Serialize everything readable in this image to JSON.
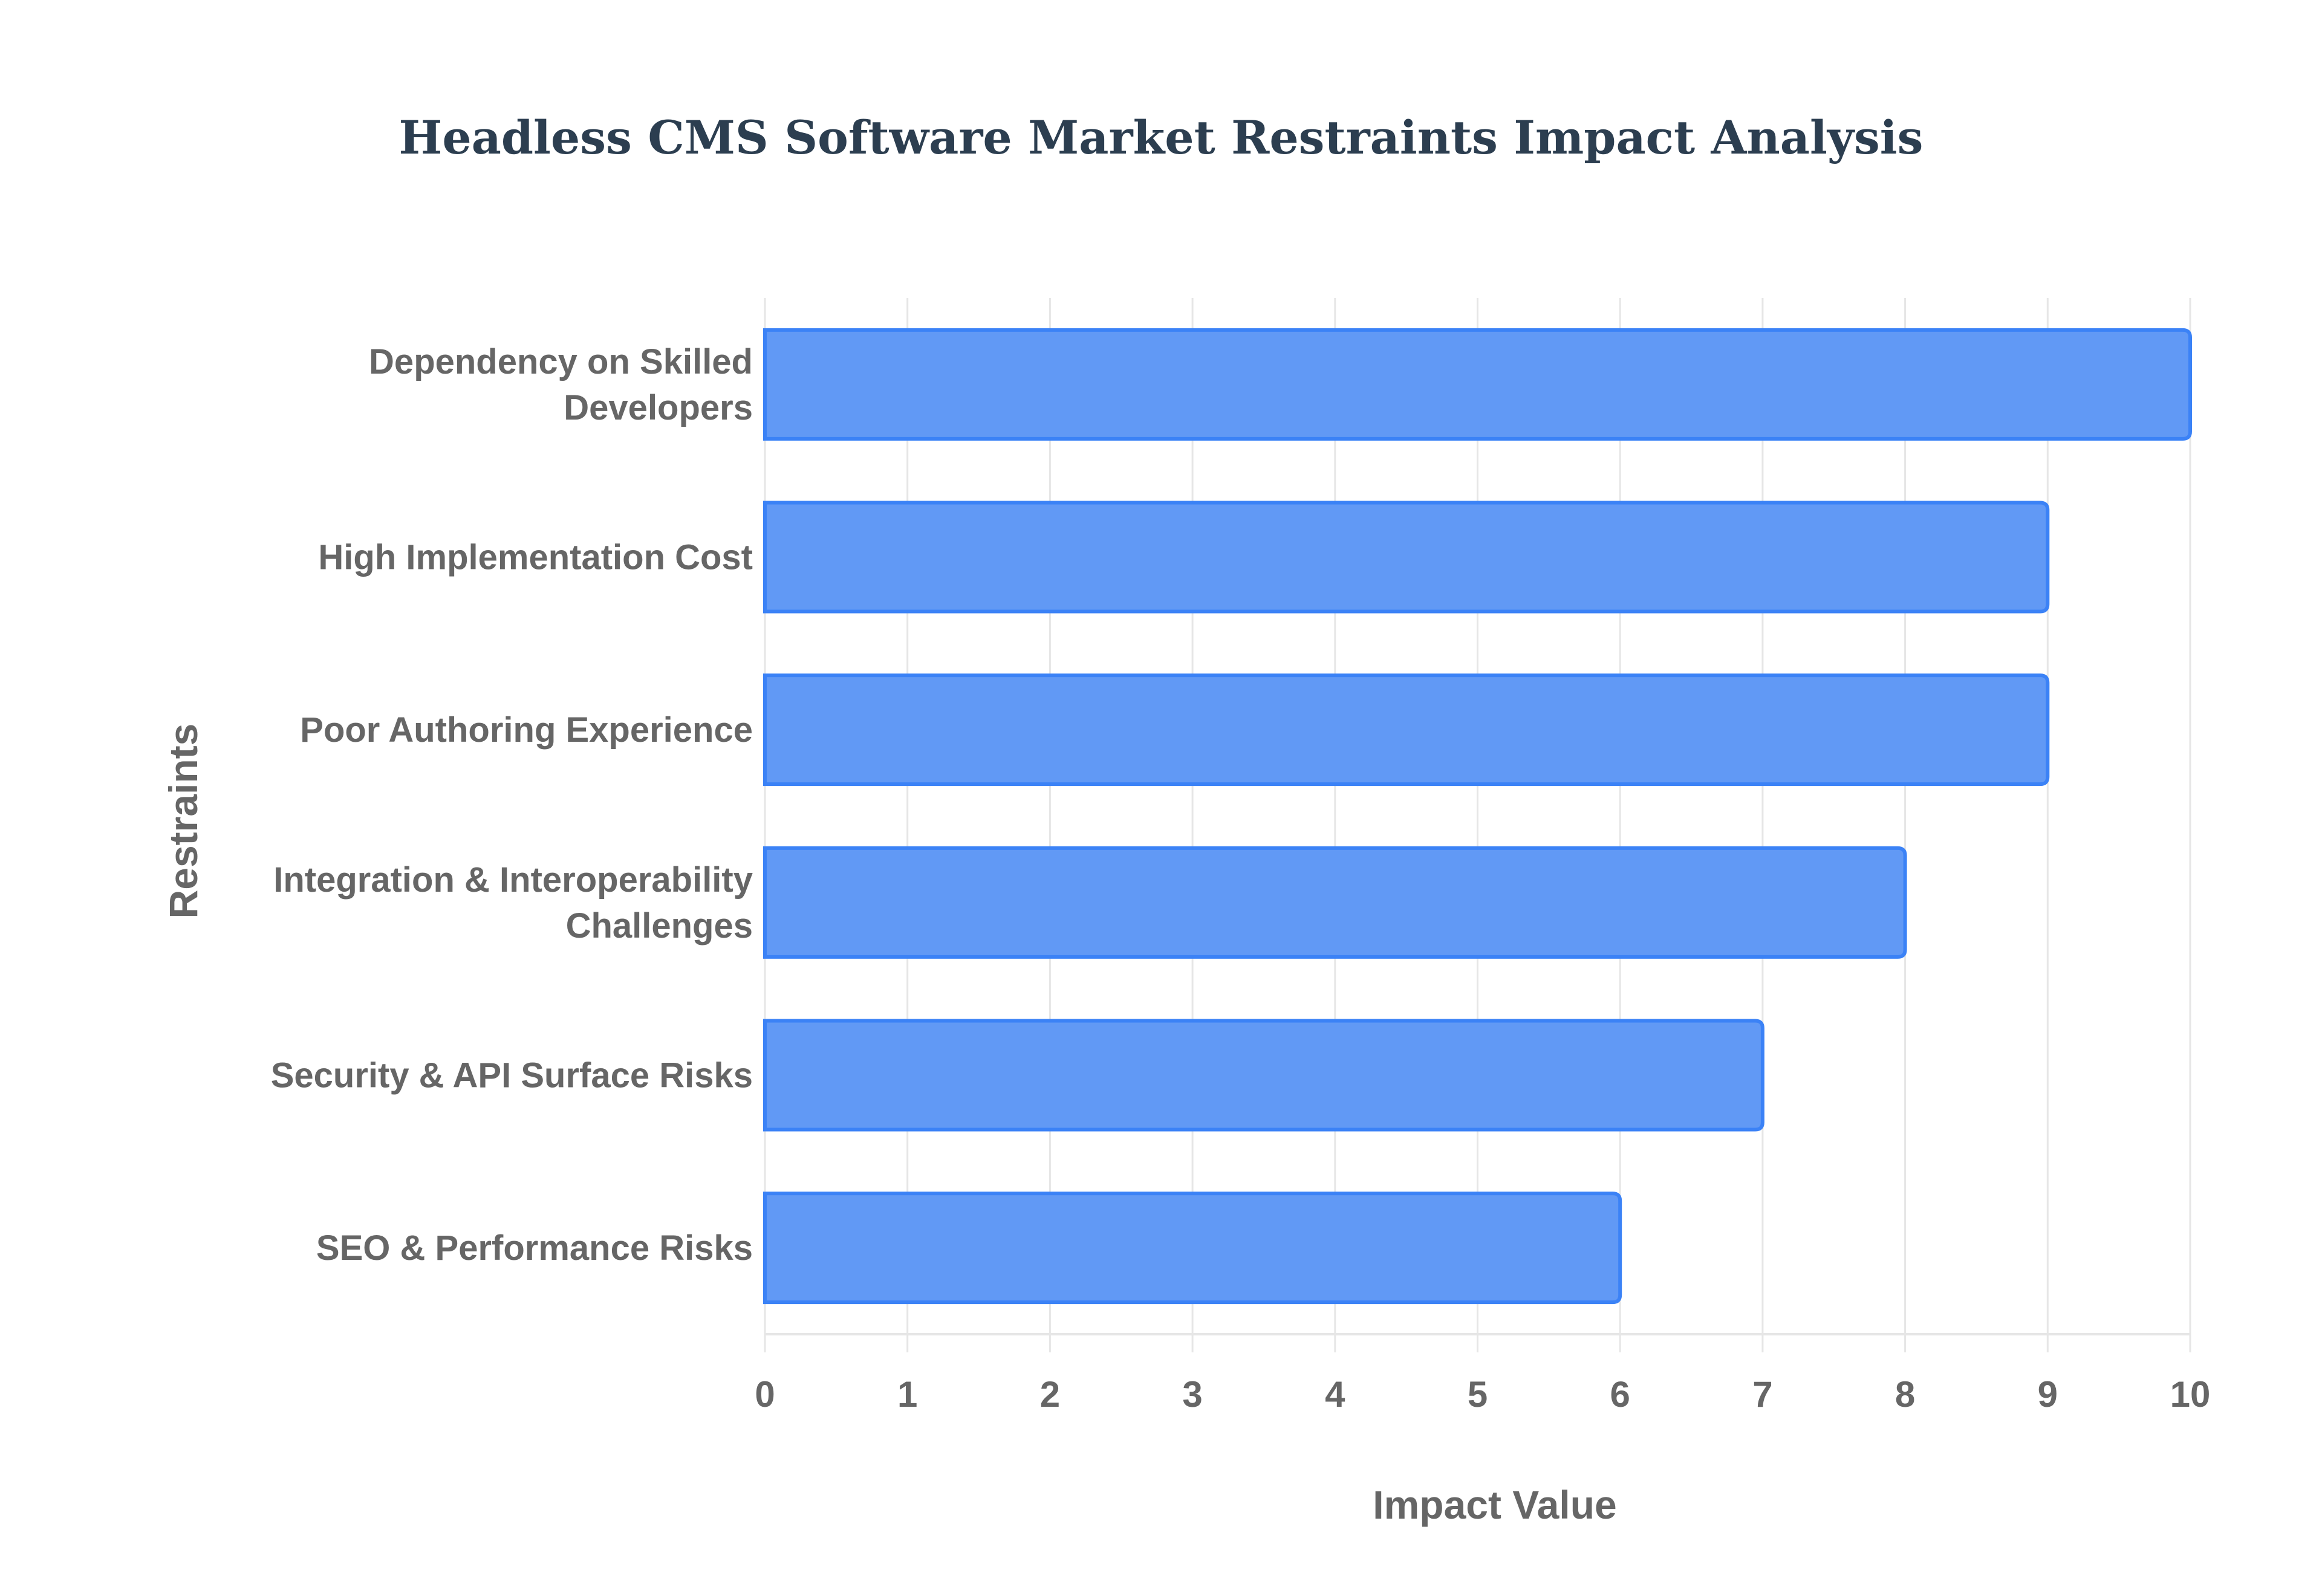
{
  "chart_data": {
    "type": "bar",
    "orientation": "horizontal",
    "title": "Headless CMS Software Market Restraints Impact Analysis",
    "xlabel": "Impact Value",
    "ylabel": "Restraints",
    "categories": [
      [
        "Dependency on Skilled",
        "Developers"
      ],
      [
        "High Implementation Cost"
      ],
      [
        "Poor Authoring Experience"
      ],
      [
        "Integration & Interoperability",
        "Challenges"
      ],
      [
        "Security & API Surface Risks"
      ],
      [
        "SEO & Performance Risks"
      ]
    ],
    "values": [
      10,
      9,
      9,
      8,
      7,
      6
    ],
    "xlim": [
      0,
      10
    ],
    "xticks": [
      "0",
      "1",
      "2",
      "3",
      "4",
      "5",
      "6",
      "7",
      "8",
      "9",
      "10"
    ],
    "grid": true,
    "legend": "none",
    "colors": {
      "bar_fill": "#6199f5",
      "bar_stroke": "#3b82f6",
      "grid": "#e6e6e6",
      "text": "#666666",
      "title": "#2c3e50"
    }
  }
}
